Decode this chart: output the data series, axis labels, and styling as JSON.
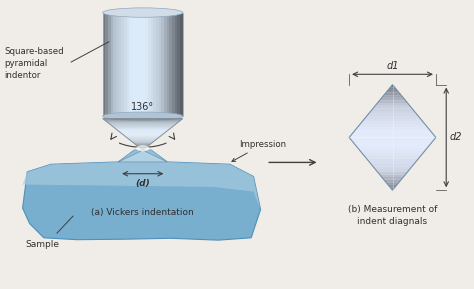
{
  "bg_color": "#f0ede8",
  "title_a": "(a) Vickers indentation",
  "title_b": "(b) Measurement of\nindent diagnals",
  "label_indentor": "Square-based\npyramidal\nindentor",
  "label_angle": "136°",
  "label_d": "(d)",
  "label_impression": "Impression",
  "label_sample": "Sample",
  "label_d1": "d1",
  "label_d2": "d2",
  "arrow_color": "#404040",
  "text_color": "#303030"
}
